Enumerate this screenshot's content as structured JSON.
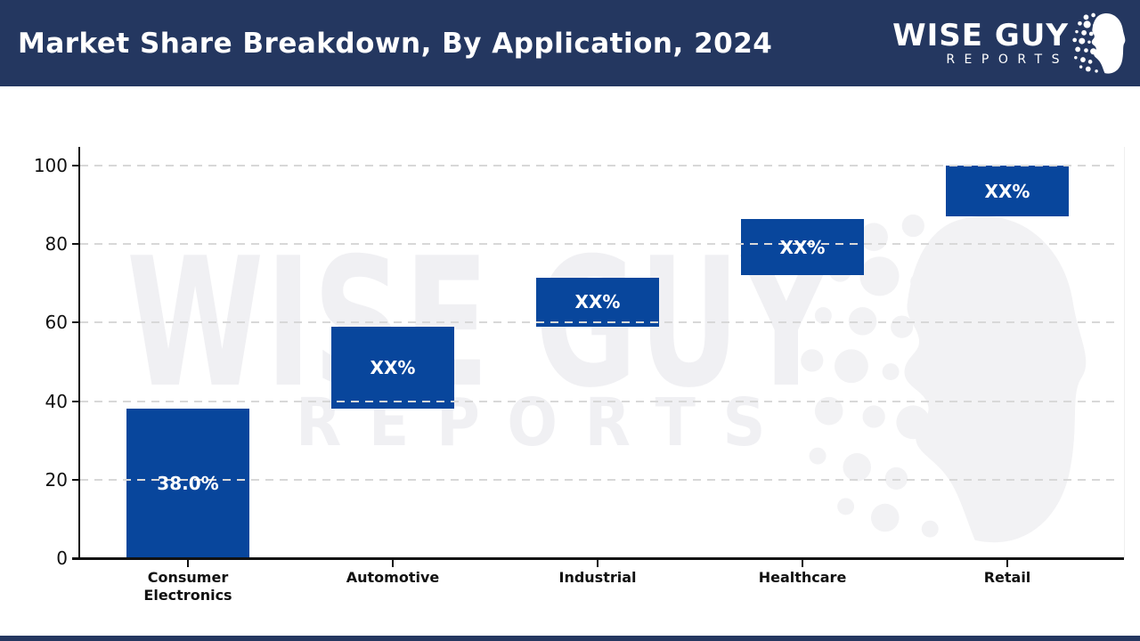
{
  "header": {
    "title": "Market Share Breakdown, By Application, 2024",
    "logo": {
      "line1": "WISE GUY",
      "line2": "REPORTS"
    }
  },
  "watermark": {
    "line1": "WISE GUY",
    "line2": "REPORTS"
  },
  "colors": {
    "header_bg": "#243760",
    "bar": "#08469c",
    "bar_label": "#ffffff",
    "grid": "#d8d8d8",
    "axis": "#111111",
    "watermark": "#f0f0f3"
  },
  "chart_data": {
    "type": "bar",
    "subtype": "floating-waterfall",
    "title": "Market Share Breakdown, By Application, 2024",
    "categories": [
      "Consumer Electronics",
      "Automotive",
      "Industrial",
      "Healthcare",
      "Retail"
    ],
    "series": [
      {
        "name": "Market share (%)",
        "segments": [
          {
            "category": "Consumer Electronics",
            "start": 0,
            "end": 38,
            "label": "38.0%"
          },
          {
            "category": "Automotive",
            "start": 38,
            "end": 59,
            "label": "XX%"
          },
          {
            "category": "Industrial",
            "start": 59,
            "end": 71.5,
            "label": "XX%"
          },
          {
            "category": "Healthcare",
            "start": 72,
            "end": 86.5,
            "label": "XX%"
          },
          {
            "category": "Retail",
            "start": 87,
            "end": 100,
            "label": "XX%"
          }
        ]
      }
    ],
    "yticks": [
      0,
      20,
      40,
      60,
      80,
      100
    ],
    "ylim": [
      0,
      105
    ],
    "xlabel": "",
    "ylabel": "",
    "grid": "horizontal dashed, drawn over bars",
    "legend": "none"
  }
}
